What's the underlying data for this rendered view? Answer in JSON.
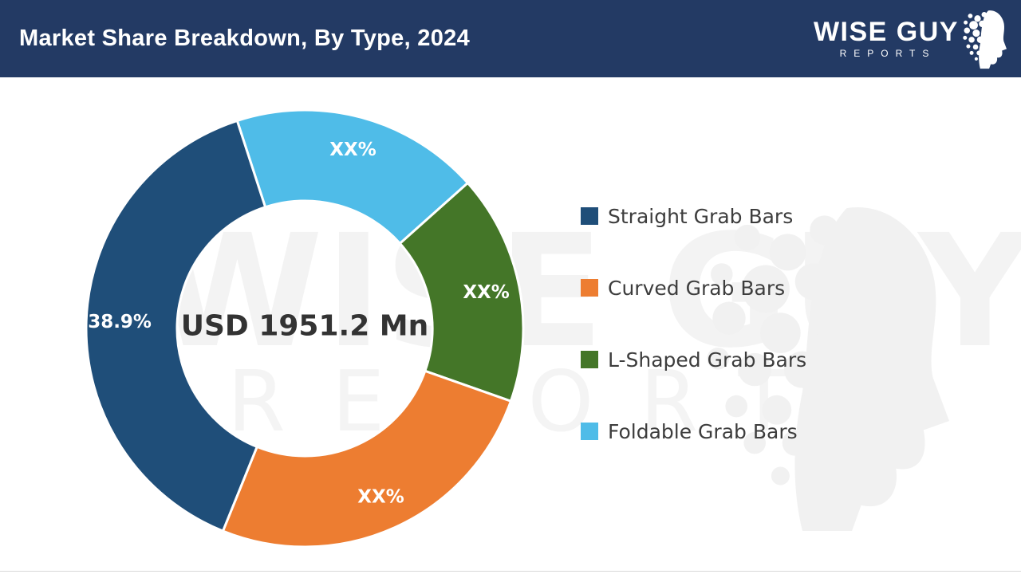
{
  "header": {
    "title": "Market Share Breakdown, By Type, 2024",
    "background_color": "#233A64",
    "logo": {
      "line1": "WISE GUY",
      "line2": "REPORTS"
    }
  },
  "watermark": {
    "line1": "WISE GUY",
    "line2": "REPORTS"
  },
  "chart_data": {
    "type": "pie",
    "subtype": "donut",
    "title": "Market Share Breakdown, By Type, 2024",
    "center_label": "USD 1951.2 Mn",
    "rotation_deg": -18,
    "direction": "counterclockwise",
    "legend_position": "right",
    "label_text_color": "#ffffff",
    "center_text_color": "#333333",
    "segments": [
      {
        "label": "Straight Grab Bars",
        "display_pct": "38.9%",
        "value_pct": 38.9,
        "color": "#1F4E79"
      },
      {
        "label": "Curved Grab Bars",
        "display_pct": "XX%",
        "value_pct": 25.7,
        "color": "#ED7D31"
      },
      {
        "label": "L-Shaped Grab Bars",
        "display_pct": "XX%",
        "value_pct": 17.0,
        "color": "#447628"
      },
      {
        "label": "Foldable Grab Bars",
        "display_pct": "XX%",
        "value_pct": 18.4,
        "color": "#4FBCE8"
      }
    ]
  }
}
